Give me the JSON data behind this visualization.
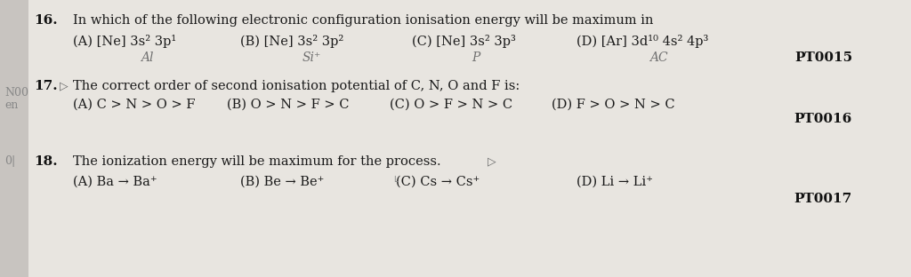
{
  "background_color": "#c8c4c0",
  "page_color": "#e8e5e0",
  "text_color": "#1a1a1a",
  "q16_number": "16.",
  "q16_main": "In which of the following electronic configuration ionisation energy will be maximum in",
  "q16_A": "(A) [Ne] 3s² 3p¹",
  "q16_B": "(B) [Ne] 3s² 3p²",
  "q16_C": "(C) [Ne] 3s² 3p³",
  "q16_D": "(D) [Ar] 3d¹⁰ 4s² 4p³",
  "q16_note_A": "Al",
  "q16_note_B": "Si⁺",
  "q16_note_C": "P",
  "q16_note_D": "AC",
  "q16_code": "PT0015",
  "q17_number": "17.",
  "q17_arrow": "▷",
  "q17_main": "The correct order of second ionisation potential of C, N, O and F is:",
  "q17_A": "(A) C > N > O > F",
  "q17_B": "(B) O > N > F > C",
  "q17_C": "(C) O > F > N > C",
  "q17_D": "(D) F > O > N > C",
  "q17_code": "PT0016",
  "q18_number": "18.",
  "q18_main": "The ionization energy will be maximum for the process.",
  "q18_arrow": "▷",
  "q18_A": "(A) Ba → Ba⁺",
  "q18_B": "(B) Be → Be⁺",
  "q18_C": "(C) Cs → Cs⁺",
  "q18_D": "(D) Li → Li⁺",
  "q18_code": "PT0017",
  "margin_n00": "N00",
  "margin_en": "en",
  "margin_018": "0|"
}
